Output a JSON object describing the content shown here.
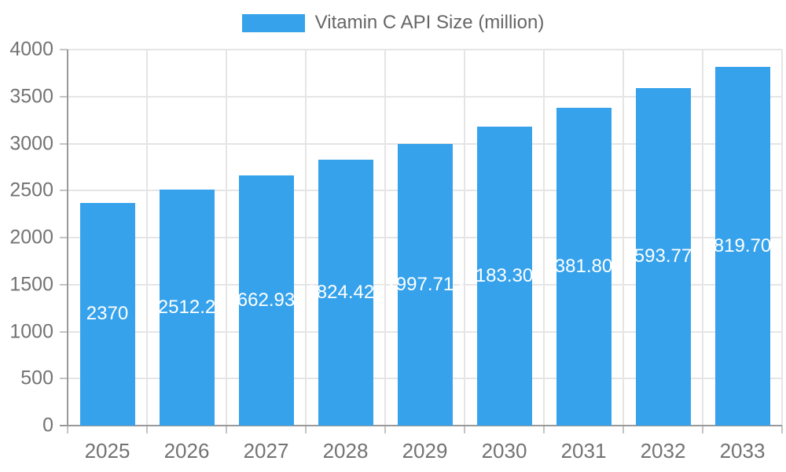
{
  "legend": {
    "label": "Vitamin C API Size (million)"
  },
  "chart_data": {
    "type": "bar",
    "title": "Vitamin C API Size (million)",
    "categories": [
      "2025",
      "2026",
      "2027",
      "2028",
      "2029",
      "2030",
      "2031",
      "2032",
      "2033"
    ],
    "series": [
      {
        "name": "Vitamin C API Size (million)",
        "values": [
          2370,
          2512.2,
          2662.932,
          2824.427,
          2997.713,
          3183.306,
          3381.804,
          3593.773,
          3819.709
        ],
        "labels": [
          "2370",
          "2512.2",
          "2662.932",
          "2824.427",
          "2997.713",
          "3183.306",
          "3381.804",
          "3593.773",
          "3819.709"
        ]
      }
    ],
    "xlabel": "",
    "ylabel": "",
    "ylim": [
      0,
      4000
    ],
    "ytick_step": 500,
    "ytick_labels": [
      "0",
      "500",
      "1000",
      "1500",
      "2000",
      "2500",
      "3000",
      "3500",
      "4000"
    ],
    "grid": true,
    "legend_position": "top-center",
    "value_label_style": "white text centered inside bars, overflowing bar width",
    "colors": {
      "bar": "#36A2EB",
      "bar_label": "#FFFFFF",
      "grid": "#E5E5E5",
      "tick": "#C4C4C4",
      "axis": "#999999",
      "tick_label": "#737373",
      "legend_text": "#666666",
      "background": "#FFFFFF"
    }
  }
}
